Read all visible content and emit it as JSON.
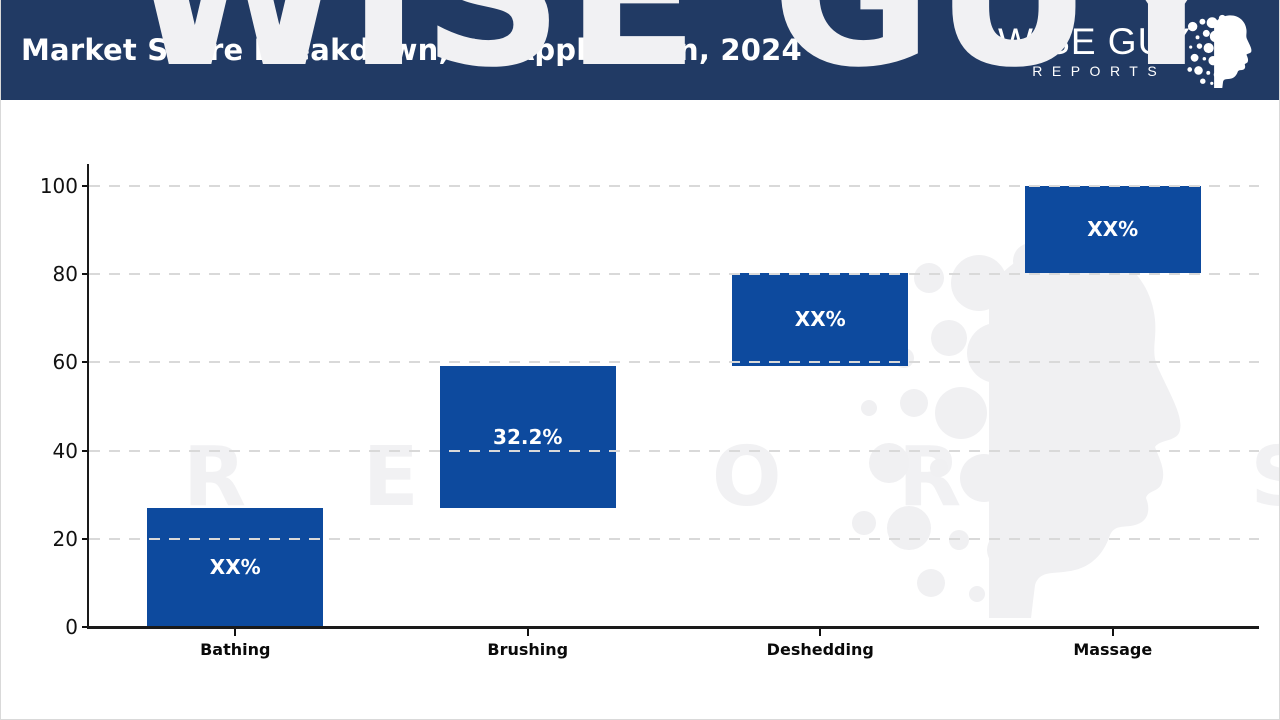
{
  "header": {
    "title": "Market Share Breakdown, By Application, 2024",
    "bg_color": "#213a64",
    "logo": {
      "line1": "WISE GUY",
      "line2": "REPORTS",
      "icon": "dotted-head-profile-icon"
    }
  },
  "watermark": {
    "line1": "WISE GUY",
    "line2": "R E P O R T S",
    "icon": "dotted-head-profile-watermark",
    "color": "#f1f1f3"
  },
  "chart_data": {
    "type": "bar",
    "subtype": "floating-segment-waterfall",
    "title": "Market Share Breakdown, By Application, 2024",
    "categories": [
      "Bathing",
      "Brushing",
      "Deshedding",
      "Massage"
    ],
    "segments": [
      {
        "category": "Bathing",
        "base": 0,
        "top": 27,
        "value_label": "XX%"
      },
      {
        "category": "Brushing",
        "base": 27,
        "top": 59.2,
        "value_label": "32.2%"
      },
      {
        "category": "Deshedding",
        "base": 59.2,
        "top": 80.3,
        "value_label": "XX%"
      },
      {
        "category": "Massage",
        "base": 80.3,
        "top": 100,
        "value_label": "XX%"
      }
    ],
    "yticks": [
      0,
      20,
      40,
      60,
      80,
      100
    ],
    "ylim": [
      0,
      105
    ],
    "xlabel": "",
    "ylabel": "",
    "grid": "dashed-horizontal",
    "grid_color": "#d9d9d9",
    "bar_color": "#0d4a9e",
    "bar_label_color": "#ffffff",
    "axis_color": "#1a1a1a"
  }
}
